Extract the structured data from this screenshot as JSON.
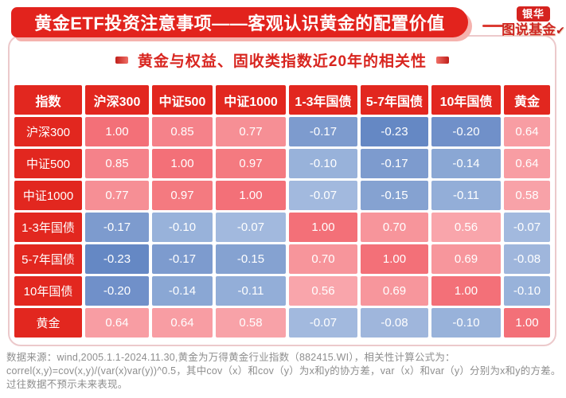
{
  "header": {
    "title": "黄金ETF投资注意事项——客观认识黄金的配置价值",
    "brand": {
      "badge": "银华",
      "name": "图说基金",
      "check": "✔"
    }
  },
  "subtitle": "黄金与权益、固收类指数近20年的相关性",
  "chart_data": {
    "type": "heatmap",
    "title": "黄金与权益、固收类指数近20年的相关性",
    "corner_label": "指数",
    "categories": [
      "沪深300",
      "中证500",
      "中证1000",
      "1-3年国债",
      "5-7年国债",
      "10年国债",
      "黄金"
    ],
    "rows": [
      "沪深300",
      "中证500",
      "中证1000",
      "1-3年国债",
      "5-7年国债",
      "10年国债",
      "黄金"
    ],
    "values": [
      [
        1.0,
        0.85,
        0.77,
        -0.17,
        -0.23,
        -0.2,
        0.64
      ],
      [
        0.85,
        1.0,
        0.97,
        -0.1,
        -0.17,
        -0.14,
        0.64
      ],
      [
        0.77,
        0.97,
        1.0,
        -0.07,
        -0.15,
        -0.11,
        0.58
      ],
      [
        -0.17,
        -0.1,
        -0.07,
        1.0,
        0.7,
        0.56,
        -0.07
      ],
      [
        -0.23,
        -0.17,
        -0.15,
        0.7,
        1.0,
        0.69,
        -0.08
      ],
      [
        -0.2,
        -0.14,
        -0.11,
        0.56,
        0.69,
        1.0,
        -0.1
      ],
      [
        0.64,
        0.64,
        0.58,
        -0.07,
        -0.08,
        -0.1,
        1.0
      ]
    ],
    "value_range": [
      -1,
      1
    ],
    "legend_position": "none",
    "grid": false
  },
  "colors": {
    "brand_red": "#e2231d",
    "header_cell_red": "#e2271f",
    "subtitle_red": "#d8251f",
    "card_border": "#ecc9cb",
    "footer_gray": "#8e8e8e",
    "positive_max": "#f37078",
    "negative_max": "#6588c4",
    "value_colors": {
      "1.00": "#f37078",
      "0.97": "#f47a80",
      "0.85": "#f5828a",
      "0.77": "#f68f95",
      "0.70": "#f7959b",
      "0.69": "#f7969c",
      "0.64": "#f89da3",
      "0.58": "#f8a2a8",
      "0.56": "#f9a5ab",
      "-0.07": "#a2b9de",
      "-0.08": "#9fb6dc",
      "-0.10": "#98b2da",
      "-0.11": "#93aed8",
      "-0.14": "#8aa7d4",
      "-0.15": "#85a2d1",
      "-0.17": "#7d9bce",
      "-0.20": "#7090c9",
      "-0.23": "#6588c4"
    }
  },
  "footer": {
    "text": "数据来源：wind,2005.1.1-2024.11.30,黄金为万得黄金行业指数（882415.WI），相关性计算公式为：correl(x,y)=cov(x,y)/(var(x)var(y))^0.5，其中cov（x）和cov（y）为x和y的协方差，var（x）和var（y）分别为x和y的方差。过往数据不预示未来表现。"
  }
}
